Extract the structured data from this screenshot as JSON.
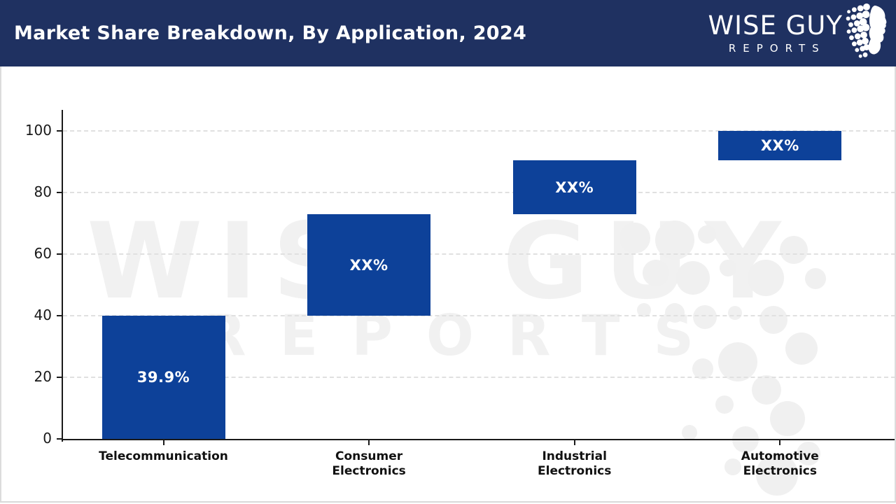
{
  "header": {
    "title": "Market Share Breakdown, By Application, 2024",
    "logo": {
      "line1": "WISE GUY",
      "line2": "REPORTS"
    }
  },
  "watermark": {
    "line1": "WISE GUY",
    "line2": "REPORTS"
  },
  "chart_data": {
    "type": "bar",
    "subtype": "floating-waterfall-bars",
    "title": "Market Share Breakdown, By Application, 2024",
    "categories": [
      "Telecommunication",
      "Consumer Electronics",
      "Industrial Electronics",
      "Automotive Electronics"
    ],
    "category_lines": [
      [
        "Telecommunication"
      ],
      [
        "Consumer",
        "Electronics"
      ],
      [
        "Industrial",
        "Electronics"
      ],
      [
        "Automotive",
        "Electronics"
      ]
    ],
    "series": [
      {
        "name": "Market Share (%)",
        "segments": [
          {
            "category": "Telecommunication",
            "start": 0,
            "end": 39.9,
            "label": "39.9%"
          },
          {
            "category": "Consumer Electronics",
            "start": 39.9,
            "end": 72.9,
            "label": "XX%"
          },
          {
            "category": "Industrial Electronics",
            "start": 72.9,
            "end": 90.4,
            "label": "XX%"
          },
          {
            "category": "Automotive Electronics",
            "start": 90.4,
            "end": 100,
            "label": "XX%"
          }
        ]
      }
    ],
    "xlabel": "",
    "ylabel": "",
    "yticks": [
      0,
      20,
      40,
      60,
      80,
      100
    ],
    "ylim": [
      0,
      106
    ],
    "grid": "horizontal-dashed",
    "legend": "none",
    "bar_color": "#0d4199",
    "bar_label_color": "#ffffff"
  },
  "colors": {
    "header_bg": "#1f3161",
    "bar": "#0d4199",
    "grid": "#e0e0e0",
    "axis": "#1a1a1a",
    "watermark": "#f1f1f1",
    "border": "#d9d9d9"
  }
}
